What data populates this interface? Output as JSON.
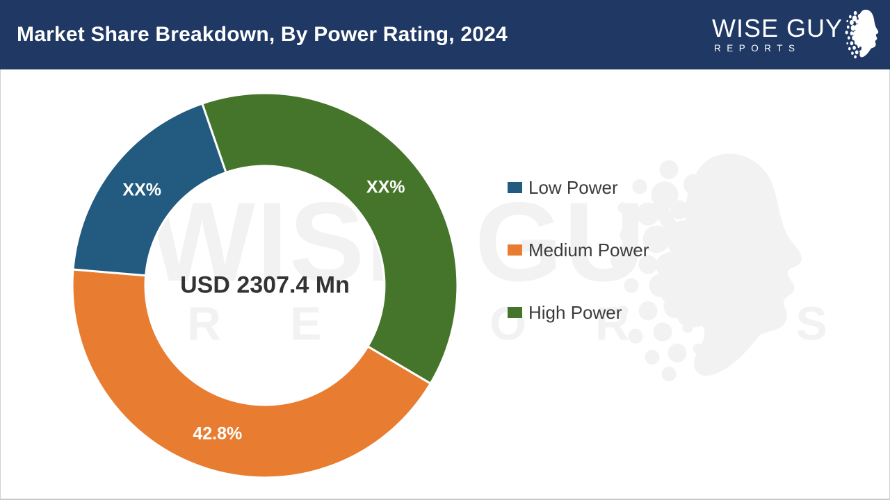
{
  "header": {
    "title": "Market Share Breakdown, By Power Rating, 2024"
  },
  "brand": {
    "name": "WISE GUY",
    "subname": "REPORTS"
  },
  "watermark": {
    "line1": "WISE GUY",
    "line2": "R E P O R T S"
  },
  "chart_data": {
    "type": "pie",
    "subtype": "donut",
    "title": "Market Share Breakdown, By Power Rating, 2024",
    "center_label": "USD 2307.4 Mn",
    "start_angle_deg": -19,
    "legend_position": "right",
    "segments": [
      {
        "name": "High Power",
        "label": "XX%",
        "pct": 38.8,
        "color": "#45752a"
      },
      {
        "name": "Medium Power",
        "label": "42.8%",
        "pct": 42.8,
        "color": "#e87d32"
      },
      {
        "name": "Low Power",
        "label": "XX%",
        "pct": 18.4,
        "color": "#235a7f"
      }
    ],
    "legend": [
      {
        "label": "Low Power",
        "color": "#235a7f"
      },
      {
        "label": "Medium Power",
        "color": "#e87d32"
      },
      {
        "label": "High Power",
        "color": "#45752a"
      }
    ]
  },
  "colors": {
    "header_bg": "#203864",
    "watermark": "#f2f2f2",
    "center_text": "#333333",
    "legend_text": "#3b3b3b",
    "separator": "#ffffff"
  }
}
